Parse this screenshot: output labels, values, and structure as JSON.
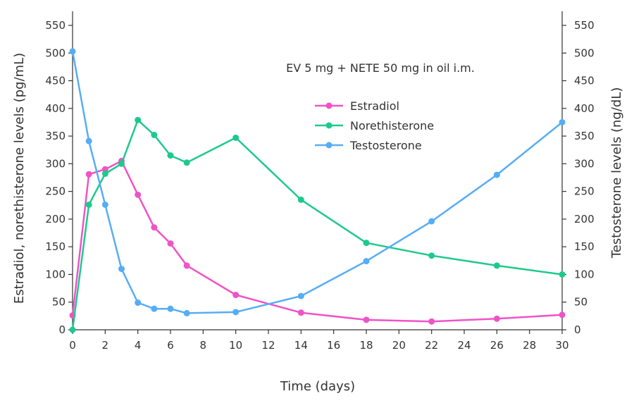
{
  "chart_data": {
    "type": "line",
    "annotation": "EV 5 mg + NETE 50 mg in oil i.m.",
    "xlabel": "Time (days)",
    "ylabel_left": "Estradiol, norethisterone levels (pg/mL)",
    "ylabel_right": "Testosterone levels (ng/dL)",
    "xlim": [
      0,
      30
    ],
    "ylim_left": [
      0,
      550
    ],
    "ylim_right": [
      0,
      550
    ],
    "x_ticks": [
      0,
      2,
      4,
      6,
      8,
      10,
      12,
      14,
      16,
      18,
      20,
      22,
      24,
      26,
      28,
      30
    ],
    "y_ticks": [
      0,
      50,
      100,
      150,
      200,
      250,
      300,
      350,
      400,
      450,
      500,
      550
    ],
    "grid": false,
    "legend_position": "top-center",
    "series": [
      {
        "name": "Estradiol",
        "color": "#f053c8",
        "axis": "left",
        "x": [
          0,
          1,
          2,
          3,
          4,
          5,
          6,
          7,
          10,
          14,
          18,
          22,
          26,
          30
        ],
        "y": [
          26,
          281,
          290,
          305,
          244,
          185,
          156,
          116,
          63,
          31,
          18,
          15,
          20,
          27
        ]
      },
      {
        "name": "Norethisterone",
        "color": "#1ec98c",
        "axis": "left",
        "x": [
          0,
          1,
          2,
          3,
          4,
          5,
          6,
          7,
          10,
          14,
          18,
          22,
          26,
          30
        ],
        "y": [
          0,
          226,
          282,
          300,
          379,
          352,
          315,
          302,
          347,
          235,
          157,
          134,
          116,
          100
        ]
      },
      {
        "name": "Testosterone",
        "color": "#57adf5",
        "axis": "right",
        "x": [
          0,
          1,
          2,
          3,
          4,
          5,
          6,
          7,
          10,
          14,
          18,
          22,
          26,
          30
        ],
        "y": [
          503,
          341,
          226,
          110,
          49,
          38,
          38,
          30,
          32,
          61,
          124,
          196,
          280,
          375
        ]
      }
    ]
  }
}
